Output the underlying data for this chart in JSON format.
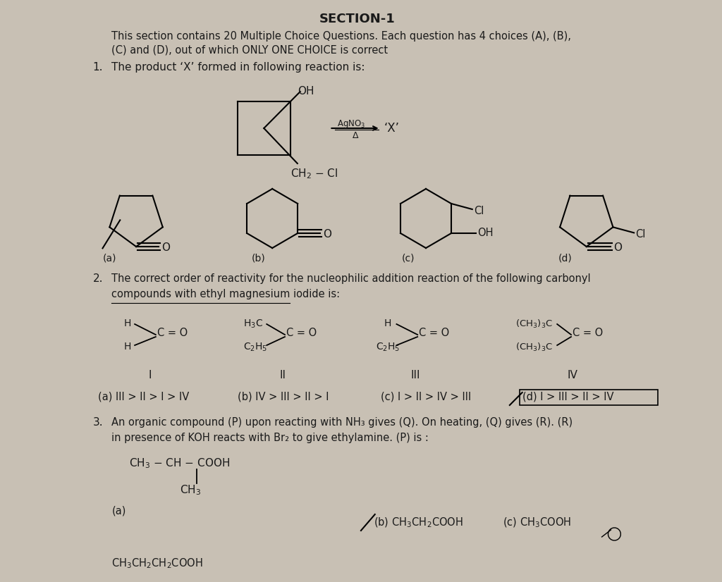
{
  "bg_color": "#c8c0b4",
  "font_color": "#1a1a1a",
  "title": "SECTION-1",
  "q1_label": "1.",
  "q1_text": "The product ‘X’ formed in following reaction is:",
  "q2_label": "2.",
  "q2_text1": "The correct order of reactivity for the nucleophilic addition reaction of the following carbonyl",
  "q2_text2": "compounds with ethyl magnesium iodide is:",
  "q3_label": "3.",
  "q3_text1": "An organic compound (P) upon reacting with NH₃ gives (Q). On heating, (Q) gives (R). (R)",
  "q3_text2": "in presence of KOH reacts with Br₂ to give ethylamine. (P) is :",
  "section_line1": "This section contains 20 Multiple Choice Questions. Each question has 4 choices (A), (B),",
  "section_line2": "(C) and (D), out of which ONLY ONE CHOICE is correct"
}
